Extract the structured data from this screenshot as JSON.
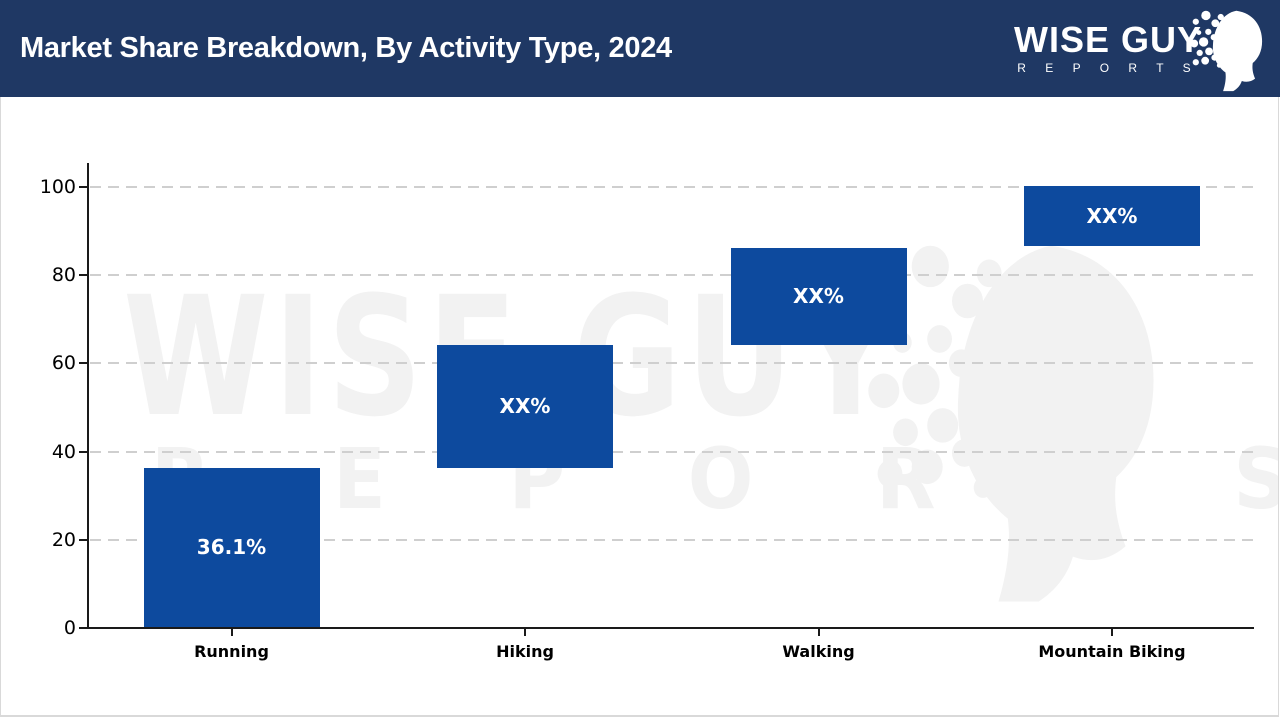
{
  "header": {
    "title": "Market Share Breakdown, By Activity Type, 2024",
    "logo": {
      "name": "WISE GUY",
      "subtitle": "R E P O R T S"
    }
  },
  "watermark": {
    "line1": "WISE GUY",
    "line2": "R E P O R T S"
  },
  "colors": {
    "header_bg": "#1f3864",
    "bar": "#0d4a9e",
    "axis": "#1a1a1a",
    "grid": "#cfcfcf",
    "watermark": "#f2f2f2",
    "bar_label": "#ffffff"
  },
  "chart_data": {
    "type": "bar",
    "variant": "waterfall",
    "title": "Market Share Breakdown, By Activity Type, 2024",
    "categories": [
      "Running",
      "Hiking",
      "Walking",
      "Mountain Biking"
    ],
    "segments": [
      {
        "category": "Running",
        "start": 0,
        "end": 36.1,
        "label": "36.1%"
      },
      {
        "category": "Hiking",
        "start": 36.1,
        "end": 63.9,
        "label": "XX%"
      },
      {
        "category": "Walking",
        "start": 63.9,
        "end": 86.0,
        "label": "XX%"
      },
      {
        "category": "Mountain Biking",
        "start": 86.4,
        "end": 100,
        "label": "XX%"
      }
    ],
    "xlabel": "",
    "ylabel": "",
    "ylim": [
      0,
      104.6
    ],
    "yticks": [
      0,
      20,
      40,
      60,
      80,
      100
    ],
    "grid": "horizontal-dashed",
    "legend": "none",
    "bar_color": "#0d4a9e"
  }
}
